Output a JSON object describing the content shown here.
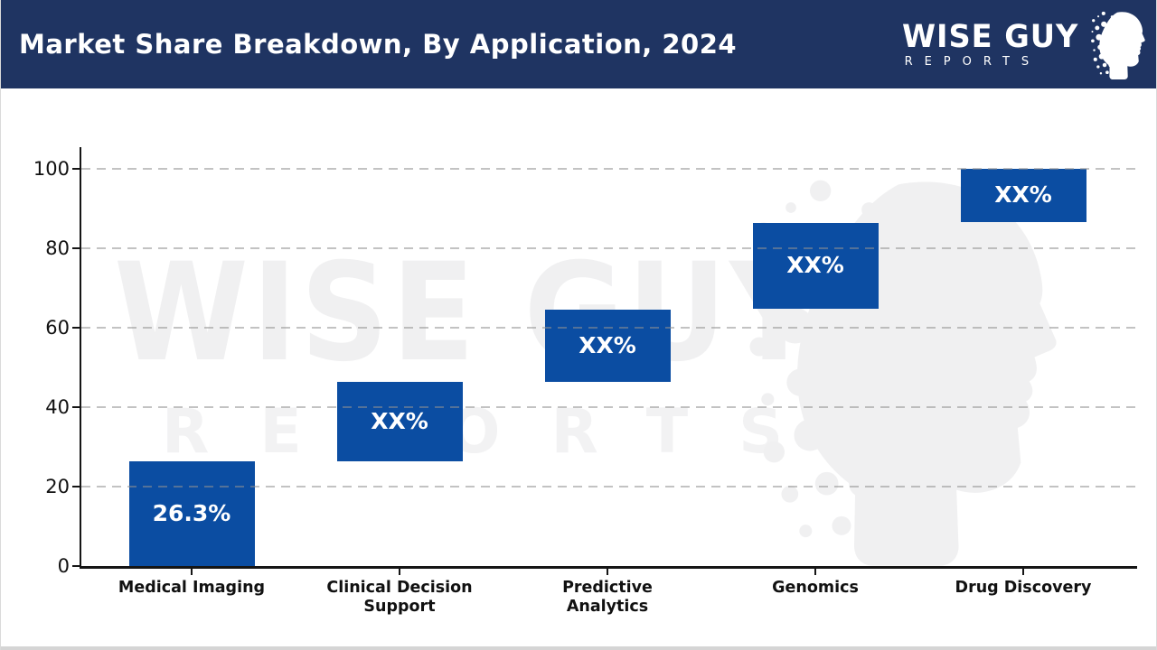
{
  "header": {
    "title": "Market Share Breakdown, By Application, 2024",
    "logo": {
      "name": "WISE GUY",
      "sub": "REPORTS"
    }
  },
  "watermark": {
    "line1": "WISE GUY.",
    "line2": "REPORTS"
  },
  "chart_data": {
    "type": "bar",
    "subtype": "waterfall",
    "title": "Market Share Breakdown, By Application, 2024",
    "xlabel": "",
    "ylabel": "",
    "categories": [
      "Medical Imaging",
      "Clinical Decision\nSupport",
      "Predictive\nAnalytics",
      "Genomics",
      "Drug Discovery"
    ],
    "bars": [
      {
        "category": "Medical Imaging",
        "label": "26.3%",
        "start": 0,
        "end": 26.3
      },
      {
        "category": "Clinical Decision Support",
        "label": "XX%",
        "start": 26.3,
        "end": 46.4
      },
      {
        "category": "Predictive Analytics",
        "label": "XX%",
        "start": 46.4,
        "end": 64.5
      },
      {
        "category": "Genomics",
        "label": "XX%",
        "start": 64.8,
        "end": 86.4
      },
      {
        "category": "Drug Discovery",
        "label": "XX%",
        "start": 86.6,
        "end": 100
      }
    ],
    "yticks": [
      0,
      20,
      40,
      60,
      80,
      100
    ],
    "ylim": [
      0,
      105
    ],
    "grid": "horizontal-dashed",
    "legend": "none",
    "bar_color": "#0b4da2",
    "bar_label_color": "#ffffff"
  },
  "colors": {
    "header_bg": "#1f3462",
    "bar": "#0b4da2",
    "axis": "#151515",
    "grid": "#c9c9c9",
    "watermark": "#f0f0f1",
    "footer_strip": "#d5d5d5"
  }
}
